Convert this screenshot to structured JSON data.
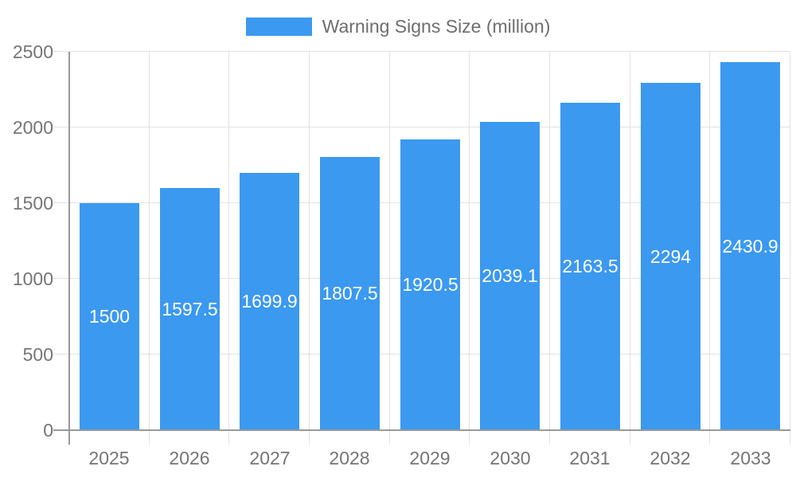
{
  "legend": {
    "label": "Warning Signs Size (million)"
  },
  "colors": {
    "bar": "#3B99F0",
    "grid": "#e2e2e2",
    "axis_line": "#999999",
    "axis_text": "#757575",
    "legend_text": "#6e6e6e",
    "value_text": "#ffffff",
    "background": "#ffffff"
  },
  "chart_data": {
    "type": "bar",
    "title": "",
    "legend": "Warning Signs Size (million)",
    "legend_position": "top",
    "categories": [
      "2025",
      "2026",
      "2027",
      "2028",
      "2029",
      "2030",
      "2031",
      "2032",
      "2033"
    ],
    "values": [
      1500,
      1597.5,
      1699.9,
      1807.5,
      1920.5,
      2039.1,
      2163.5,
      2294,
      2430.9
    ],
    "value_labels": [
      "1500",
      "1597.5",
      "1699.9",
      "1807.5",
      "1920.5",
      "2039.1",
      "2163.5",
      "2294",
      "2430.9"
    ],
    "xlabel": "",
    "ylabel": "",
    "ylim": [
      0,
      2500
    ],
    "ytick_step": 500,
    "ytick_labels": [
      "0",
      "500",
      "1000",
      "1500",
      "2000",
      "2500"
    ],
    "grid": true
  }
}
